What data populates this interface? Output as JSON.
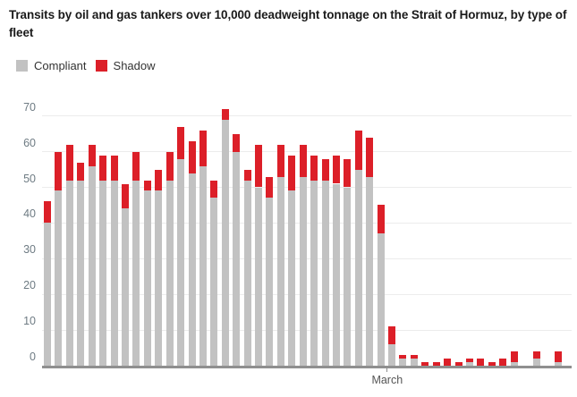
{
  "title": "Transits by oil and gas tankers over 10,000 deadweight tonnage on the Strait of Hormuz, by type of fleet",
  "legend": {
    "items": [
      {
        "label": "Compliant",
        "color": "#c2c2c2"
      },
      {
        "label": "Shadow",
        "color": "#dc1f28"
      }
    ]
  },
  "colors": {
    "compliant": "#c2c2c2",
    "shadow": "#dc1f28",
    "gridline": "#ececec",
    "axis_line": "#8f8f8f",
    "axis_label": "#6e7b83",
    "title_text": "#1a1a1a"
  },
  "chart_data": {
    "type": "bar",
    "stacked": true,
    "title": "Transits by oil and gas tankers over 10,000 deadweight tonnage on the Strait of Hormuz, by type of fleet",
    "xlabel": "",
    "ylabel": "",
    "ylim": [
      0,
      73
    ],
    "grid": true,
    "legend_position": "top-left",
    "y_ticks": [
      0,
      10,
      20,
      30,
      40,
      50,
      60,
      70
    ],
    "x_axis": {
      "tick_label": "March",
      "tick_after_bar": 31
    },
    "bar_count": 47,
    "series": [
      {
        "name": "Compliant",
        "color": "#c2c2c2",
        "values": [
          40,
          49,
          52,
          52,
          56,
          52,
          52,
          44,
          52,
          49,
          49,
          52,
          58,
          54,
          56,
          47,
          69,
          60,
          52,
          50,
          47,
          53,
          49,
          53,
          52,
          52,
          51,
          50,
          55,
          53,
          37,
          6,
          2,
          2,
          0,
          0,
          0,
          0,
          1,
          0,
          0,
          0,
          1,
          0,
          2,
          0,
          1
        ]
      },
      {
        "name": "Shadow",
        "color": "#dc1f28",
        "values": [
          6,
          11,
          10,
          5,
          6,
          7,
          7,
          7,
          8,
          3,
          6,
          8,
          9,
          9,
          10,
          5,
          3,
          5,
          3,
          12,
          6,
          9,
          10,
          9,
          7,
          6,
          8,
          8,
          11,
          11,
          8,
          5,
          1,
          1,
          1,
          1,
          2,
          1,
          1,
          2,
          1,
          2,
          3,
          0,
          2,
          0,
          3
        ]
      }
    ]
  }
}
